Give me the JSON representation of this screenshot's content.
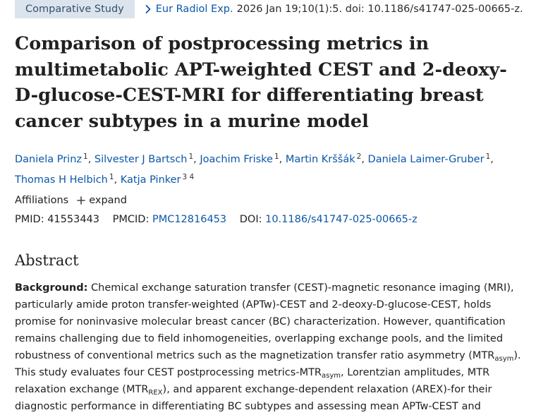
{
  "header": {
    "badge": "Comparative Study",
    "journal": "Eur Radiol Exp.",
    "citation": "2026 Jan 19;10(1):5. doi: 10.1186/s41747-025-00665-z."
  },
  "article": {
    "title": "Comparison of postprocessing metrics in multimetabolic APT-weighted CEST and 2-deoxy-D-glucose-CEST-MRI for differentiating breast cancer subtypes in a murine model",
    "authors": [
      {
        "name": "Daniela Prinz",
        "aff": "1"
      },
      {
        "name": "Silvester J Bartsch",
        "aff": "1"
      },
      {
        "name": "Joachim Friske",
        "aff": "1"
      },
      {
        "name": "Martin Krššák",
        "aff": "2"
      },
      {
        "name": "Daniela Laimer-Gruber",
        "aff": "1"
      },
      {
        "name": "Thomas H Helbich",
        "aff": "1"
      },
      {
        "name": "Katja Pinker",
        "aff": "3 4"
      }
    ],
    "affiliations_label": "Affiliations",
    "expand_label": "expand",
    "pmid_label": "PMID:",
    "pmid": "41553443",
    "pmcid_label": "PMCID:",
    "pmcid": "PMC12816453",
    "doi_label": "DOI:",
    "doi": "10.1186/s41747-025-00665-z"
  },
  "abstract": {
    "heading": "Abstract",
    "background_label": "Background:",
    "p1": " Chemical exchange saturation transfer (CEST)-magnetic resonance imaging (MRI), particularly amide proton transfer-weighted (APTw)-CEST and 2-deoxy-D-glucose-CEST, holds promise for noninvasive molecular breast cancer (BC) characterization. However, quantification remains challenging due to field inhomogeneities, overlapping exchange pools, and the limited robustness of conventional metrics such as the magnetization transfer ratio asymmetry (MTR",
    "sub1": "asym",
    "p2": "). This study evaluates four CEST postprocessing metrics-MTR",
    "sub2": "asym",
    "p3": ", Lorentzian amplitudes, MTR relaxation exchange (MTR",
    "sub3": "REX",
    "p4": "), and apparent exchange-dependent relaxation (AREX)-for their diagnostic performance in differentiating BC subtypes and assessing mean APTw-CEST and"
  }
}
